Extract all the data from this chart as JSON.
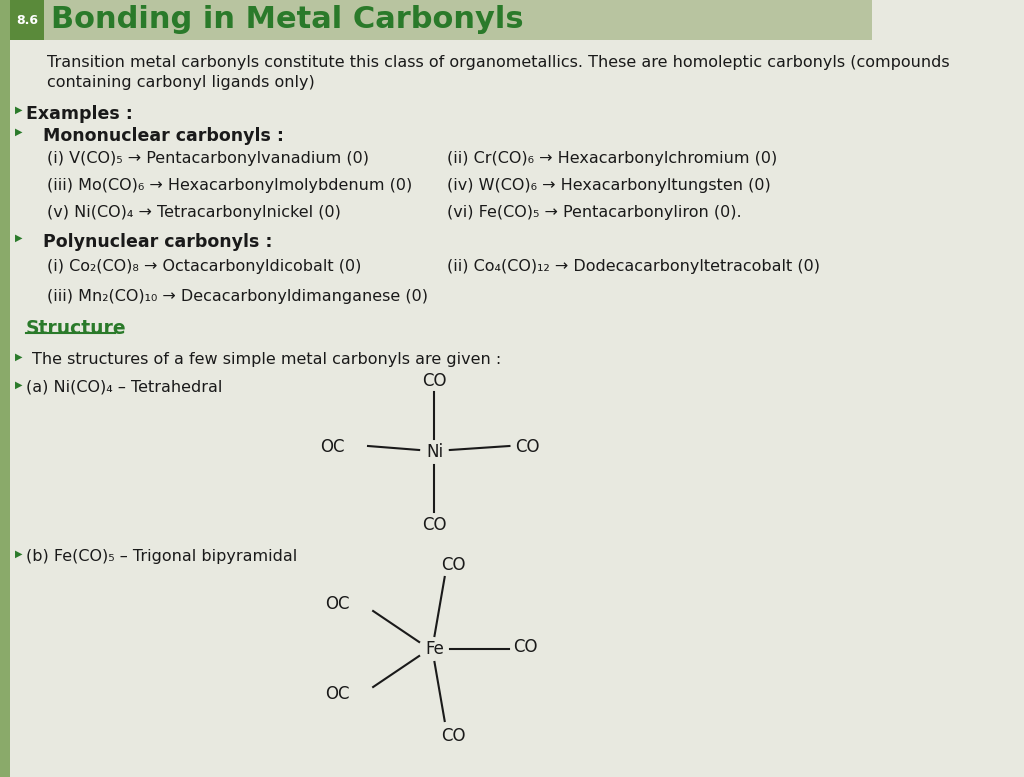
{
  "page_bg": "#e8e9e0",
  "title": "Bonding in Metal Carbonyls",
  "title_prefix": "8.6",
  "title_color": "#2a7a2a",
  "title_fontsize": 22,
  "intro_text": "Transition metal carbonyls constitute this class of organometallics. These are homoleptic carbonyls (compounds\ncontaining carbonyl ligands only)",
  "examples_label": "Examples :",
  "mononuclear_label": "Mononuclear carbonyls :",
  "mononuclear_items_left": [
    "(i) V(CO)₅ → Pentacarbonylvanadium (0)",
    "(iii) Mo(CO)₆ → Hexacarbonylmolybdenum (0)",
    "(v) Ni(CO)₄ → Tetracarbonylnickel (0)"
  ],
  "mononuclear_items_right": [
    "(ii) Cr(CO)₆ → Hexacarbonylchromium (0)",
    "(iv) W(CO)₆ → Hexacarbonyltungsten (0)",
    "(vi) Fe(CO)₅ → Pentacarbonyliron (0)."
  ],
  "polynuclear_label": "Polynuclear carbonyls :",
  "polynuclear_items_left": [
    "(i) Co₂(CO)₈ → Octacarbonyldicobalt (0)",
    "(iii) Mn₂(CO)₁₀ → Decacarbonyldimanganese (0)"
  ],
  "polynuclear_items_right": [
    "(ii) Co₄(CO)₁₂ → Dodecacarbonyltetracobalt (0)"
  ],
  "structure_label": "Structure",
  "structure_intro": "The structures of a few simple metal carbonyls are given :",
  "struct_a_label": "(a) Ni(CO)₄ – Tetrahedral",
  "struct_b_label": "(b) Fe(CO)₅ – Trigonal bipyramidal",
  "text_color": "#1a1a1a",
  "green_color": "#2a7a2a",
  "body_fontsize": 12.5,
  "small_fontsize": 11.5,
  "title_bar_color": "#b8c4a0",
  "prefix_box_color": "#5a8a3a",
  "left_bar_color": "#8aaa6a"
}
